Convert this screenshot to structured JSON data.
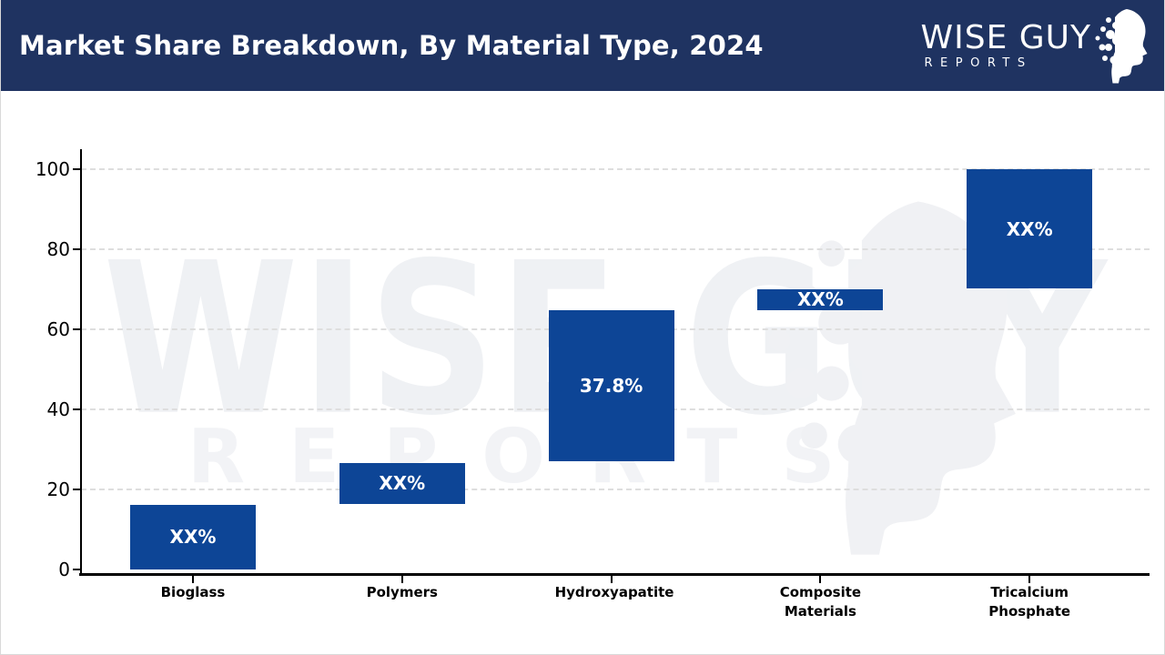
{
  "header": {
    "title": "Market Share Breakdown, By Material Type, 2024",
    "background": "#1f3361",
    "logo": {
      "line1": "WISE GUY",
      "line2": "REPORTS"
    }
  },
  "watermark": {
    "line1": "WISE GUY",
    "line2": "REPORTS"
  },
  "colors": {
    "header_background": "#1f3361",
    "bar": "#0d4596",
    "bar_label": "#ffffff",
    "gridline": "#dedede",
    "axis": "#000000",
    "frame_border": "#d9d9d9"
  },
  "chart_data": {
    "type": "bar",
    "variant": "floating-waterfall-columns",
    "title": "Market Share Breakdown, By Material Type, 2024",
    "xlabel": "",
    "ylabel": "",
    "ylim": [
      0,
      100
    ],
    "yticks": [
      0,
      20,
      40,
      60,
      80,
      100
    ],
    "grid": "dashed-horizontal",
    "legend": "none",
    "categories": [
      "Bioglass",
      "Polymers",
      "Hydroxyapatite",
      "Composite Materials",
      "Tricalcium Phosphate"
    ],
    "segments": [
      {
        "category": "Bioglass",
        "start": 0.0,
        "end": 16.2,
        "span": 16.2,
        "label": "XX%"
      },
      {
        "category": "Polymers",
        "start": 16.4,
        "end": 26.6,
        "span": 10.2,
        "label": "XX%"
      },
      {
        "category": "Hydroxyapatite",
        "start": 27.0,
        "end": 64.8,
        "span": 37.8,
        "label": "37.8%"
      },
      {
        "category": "Composite Materials",
        "start": 64.8,
        "end": 70.0,
        "span": 5.2,
        "label": "XX%"
      },
      {
        "category": "Tricalcium Phosphate",
        "start": 70.2,
        "end": 99.8,
        "span": 29.6,
        "label": "XX%"
      }
    ]
  }
}
